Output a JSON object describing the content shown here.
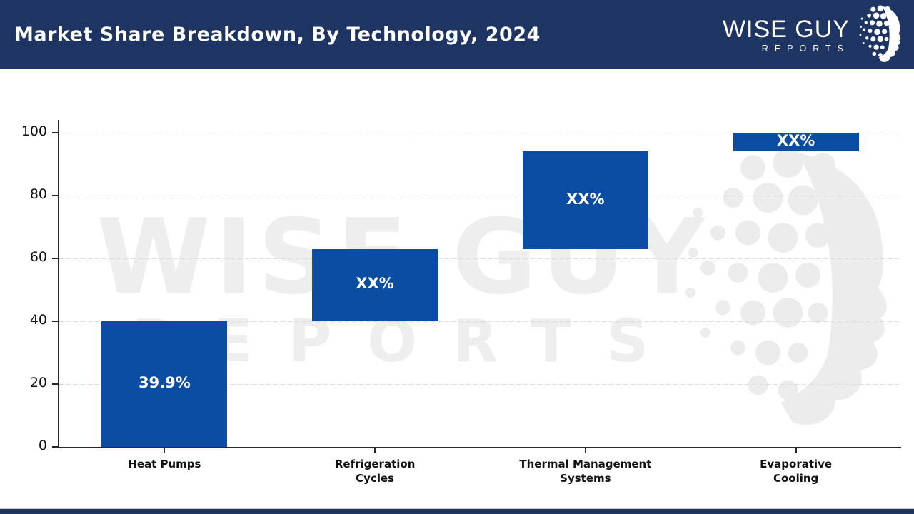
{
  "header": {
    "title": "Market Share Breakdown, By Technology, 2024",
    "bg_color": "#1e3563",
    "logo": {
      "line1": "WISE GUY",
      "line2": "REPORTS"
    }
  },
  "watermark": {
    "line1": "WISE GUY",
    "line2": "REPORTS"
  },
  "chart_data": {
    "type": "bar",
    "variant": "floating-stacked-breakdown",
    "title": "Market Share Breakdown, By Technology, 2024",
    "categories": [
      "Heat Pumps",
      "Refrigeration\nCycles",
      "Thermal Management\nSystems",
      "Evaporative\nCooling"
    ],
    "series": [
      {
        "name": "Market Share",
        "bar_labels": [
          "39.9%",
          "XX%",
          "XX%",
          "XX%"
        ],
        "ranges": [
          [
            0,
            39.9
          ],
          [
            40,
            63
          ],
          [
            63,
            94
          ],
          [
            94,
            100
          ]
        ],
        "segment_heights_est": [
          39.9,
          23,
          31,
          6
        ]
      }
    ],
    "xlabel": "",
    "ylabel": "",
    "yticks": [
      0,
      20,
      40,
      60,
      80,
      100
    ],
    "ylim": [
      0,
      104
    ],
    "grid": "horizontal-dashed",
    "legend": "none",
    "bar_color": "#0b4da2",
    "bar_label_color": "#ffffff",
    "axis_color": "#262626",
    "grid_color": "#d9d9d9",
    "tick_label_color": "#111111"
  },
  "footer": {
    "bg_color": "#1e3563"
  }
}
